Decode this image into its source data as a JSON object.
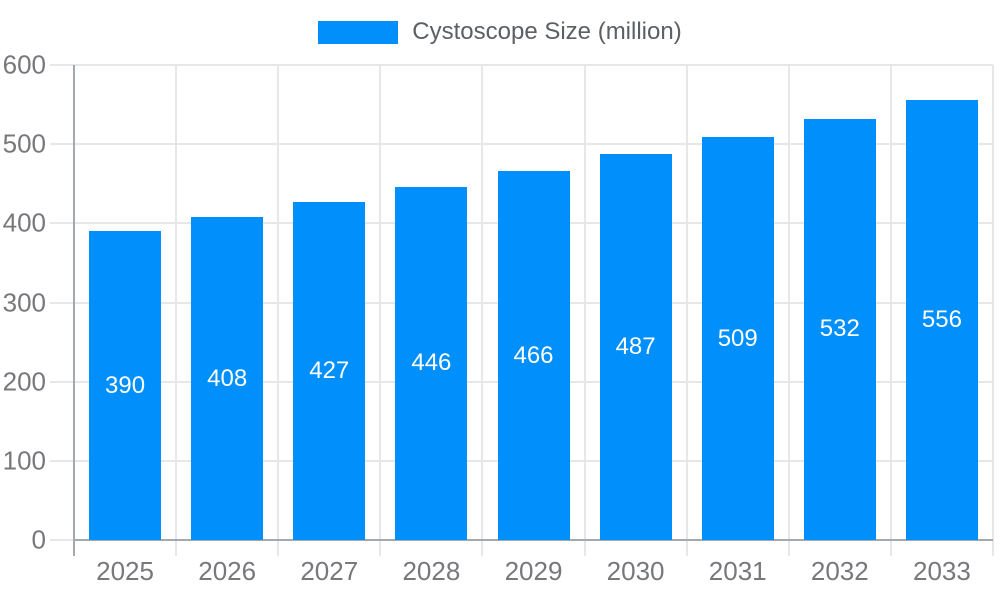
{
  "chart_data": {
    "type": "bar",
    "title": "",
    "series_name": "Cystoscope Size (million)",
    "legend": {
      "label": "Cystoscope Size (million)",
      "position": "top"
    },
    "categories": [
      "2025",
      "2026",
      "2027",
      "2028",
      "2029",
      "2030",
      "2031",
      "2032",
      "2033"
    ],
    "values": [
      390,
      408,
      427,
      446,
      466,
      487,
      509,
      532,
      556
    ],
    "value_labels": [
      "390",
      "408",
      "427",
      "446",
      "466",
      "487",
      "509",
      "532",
      "556"
    ],
    "xlabel": "",
    "ylabel": "",
    "ylim": [
      0,
      600
    ],
    "yticks": [
      0,
      100,
      200,
      300,
      400,
      500,
      600
    ],
    "ytick_labels": [
      "0",
      "100",
      "200",
      "300",
      "400",
      "500",
      "600"
    ],
    "grid": true,
    "legend_position": "top",
    "colors": {
      "bar": "#008FFB",
      "value_label": "#ffffff",
      "axis_label": "#76787b",
      "legend_label": "#5b6064",
      "grid": "#e7e7e7",
      "axis_line": "#a6a9ab",
      "background": "#ffffff"
    }
  }
}
